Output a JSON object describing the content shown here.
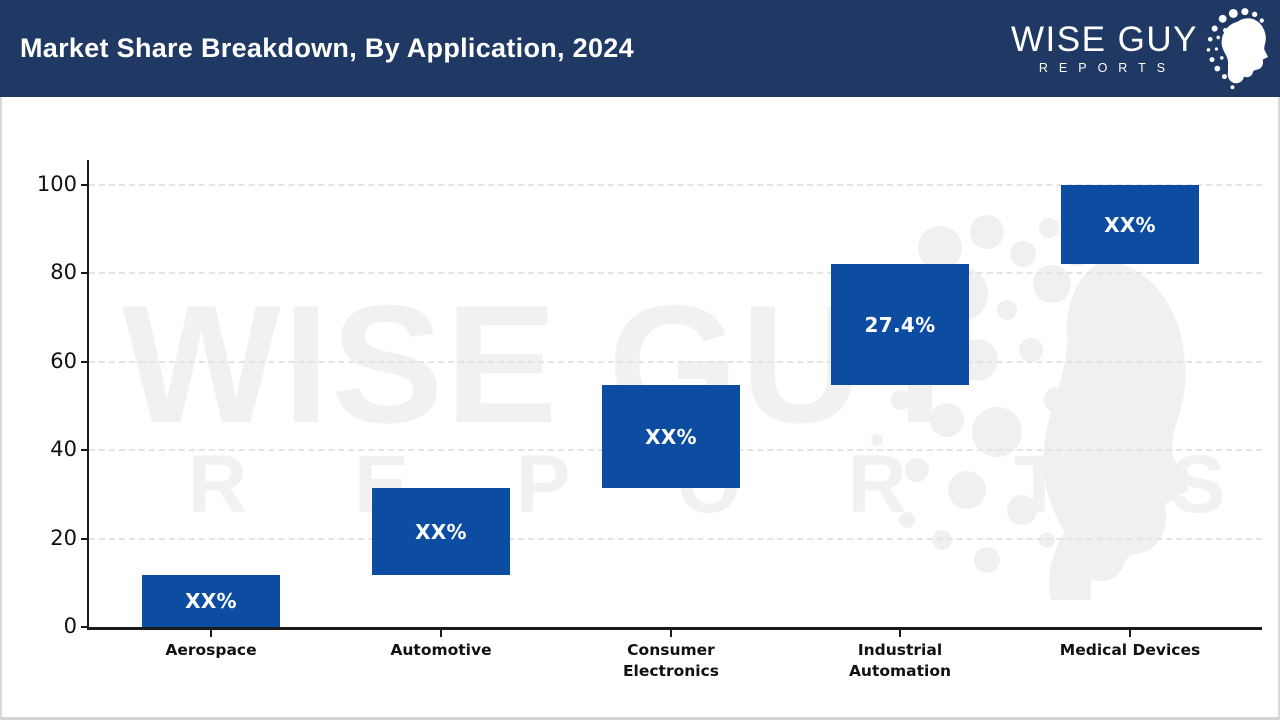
{
  "header": {
    "title": "Market Share Breakdown, By Application, 2024",
    "brand": {
      "line1": "WISE GUY",
      "line2": "REPORTS"
    }
  },
  "watermark": {
    "line1": "WISE GUY",
    "line2": "REPORTS"
  },
  "colors": {
    "header_bg": "#1F3864",
    "bar": "#0C4DA2",
    "bar_label": "#FFFFFF",
    "axis": "#1A1A1A",
    "gridline": "#E4E4E4",
    "watermark": "#F1F1F1",
    "frame_border": "#D9D9D9"
  },
  "chart_data": {
    "type": "bar",
    "subtype": "waterfall",
    "title": "Market Share Breakdown, By Application, 2024",
    "categories": [
      "Aerospace",
      "Automotive",
      "Consumer Electronics",
      "Industrial Automation",
      "Medical Devices"
    ],
    "category_label_lines": [
      [
        "Aerospace"
      ],
      [
        "Automotive"
      ],
      [
        "Consumer",
        "Electronics"
      ],
      [
        "Industrial",
        "Automation"
      ],
      [
        "Medical Devices"
      ]
    ],
    "segments": [
      {
        "category": "Aerospace",
        "start": 0,
        "value": 11.8,
        "label": "XX%"
      },
      {
        "category": "Automotive",
        "start": 11.8,
        "value": 19.6,
        "label": "XX%"
      },
      {
        "category": "Consumer Electronics",
        "start": 31.4,
        "value": 23.3,
        "label": "XX%"
      },
      {
        "category": "Industrial Automation",
        "start": 54.7,
        "value": 27.4,
        "label": "27.4%"
      },
      {
        "category": "Medical Devices",
        "start": 82.1,
        "value": 17.9,
        "label": "XX%"
      }
    ],
    "yticks": [
      0,
      20,
      40,
      60,
      80,
      100
    ],
    "ylim": [
      0,
      105.7
    ],
    "xlabel": "",
    "ylabel": "",
    "grid": "dashed-horizontal",
    "legend": "none"
  }
}
